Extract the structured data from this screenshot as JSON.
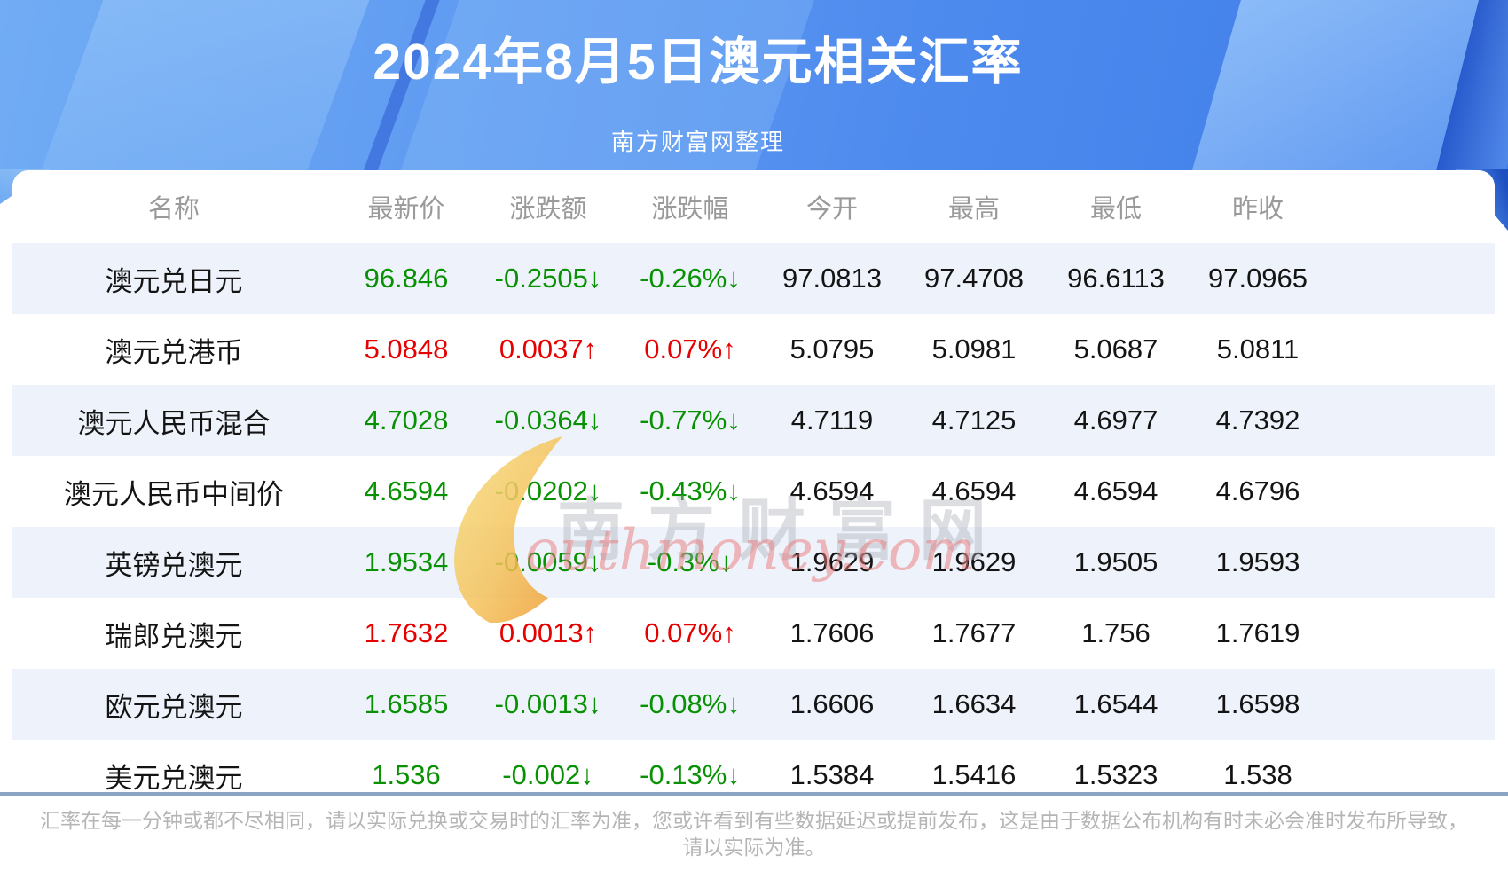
{
  "header": {
    "title": "2024年8月5日澳元相关汇率",
    "subtitle": "南方财富网整理"
  },
  "table": {
    "columns": [
      "名称",
      "最新价",
      "涨跌额",
      "涨跌幅",
      "今开",
      "最高",
      "最低",
      "昨收"
    ],
    "rows": [
      {
        "name": "澳元兑日元",
        "latest": "96.846",
        "change": "-0.2505↓",
        "change_pct": "-0.26%↓",
        "open": "97.0813",
        "high": "97.4708",
        "low": "96.6113",
        "prev_close": "97.0965",
        "trend": "down"
      },
      {
        "name": "澳元兑港币",
        "latest": "5.0848",
        "change": "0.0037↑",
        "change_pct": "0.07%↑",
        "open": "5.0795",
        "high": "5.0981",
        "low": "5.0687",
        "prev_close": "5.0811",
        "trend": "up"
      },
      {
        "name": "澳元人民币混合",
        "latest": "4.7028",
        "change": "-0.0364↓",
        "change_pct": "-0.77%↓",
        "open": "4.7119",
        "high": "4.7125",
        "low": "4.6977",
        "prev_close": "4.7392",
        "trend": "down"
      },
      {
        "name": "澳元人民币中间价",
        "latest": "4.6594",
        "change": "-0.0202↓",
        "change_pct": "-0.43%↓",
        "open": "4.6594",
        "high": "4.6594",
        "low": "4.6594",
        "prev_close": "4.6796",
        "trend": "down"
      },
      {
        "name": "英镑兑澳元",
        "latest": "1.9534",
        "change": "-0.0059↓",
        "change_pct": "-0.3%↓",
        "open": "1.9629",
        "high": "1.9629",
        "low": "1.9505",
        "prev_close": "1.9593",
        "trend": "down"
      },
      {
        "name": "瑞郎兑澳元",
        "latest": "1.7632",
        "change": "0.0013↑",
        "change_pct": "0.07%↑",
        "open": "1.7606",
        "high": "1.7677",
        "low": "1.756",
        "prev_close": "1.7619",
        "trend": "up"
      },
      {
        "name": "欧元兑澳元",
        "latest": "1.6585",
        "change": "-0.0013↓",
        "change_pct": "-0.08%↓",
        "open": "1.6606",
        "high": "1.6634",
        "low": "1.6544",
        "prev_close": "1.6598",
        "trend": "down"
      },
      {
        "name": "美元兑澳元",
        "latest": "1.536",
        "change": "-0.002↓",
        "change_pct": "-0.13%↓",
        "open": "1.5384",
        "high": "1.5416",
        "low": "1.5323",
        "prev_close": "1.538",
        "trend": "down"
      }
    ]
  },
  "watermark": {
    "cn": "南方财富网",
    "en": "outhmoney.com"
  },
  "footer": {
    "line1": "汇率在每一分钟或都不尽相同，请以实际兑换或交易时的汇率为准，您或许看到有些数据延迟或提前发布，这是由于数据公布机构有时未必会准时发布所导致，",
    "line2": "请以实际为准。"
  },
  "colors": {
    "up": "#e60000",
    "down": "#089103",
    "row_band": "#eef3fb",
    "divider": "#8ba6c4",
    "hero_blue": "#4d8aee"
  }
}
